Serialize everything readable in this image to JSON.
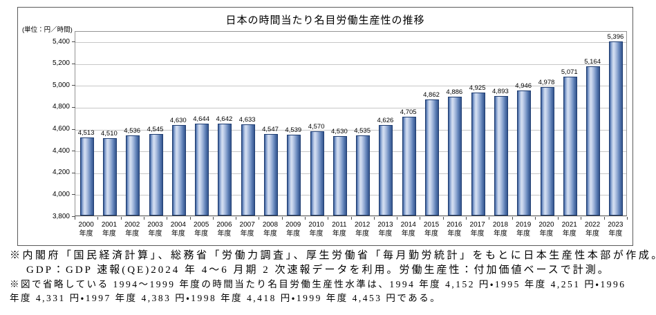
{
  "chart_data": {
    "type": "bar",
    "title": "日本の時間当たり名目労働生産性の推移",
    "ylabel": "(単位：円／時間)",
    "categories": [
      "2000",
      "2001",
      "2002",
      "2003",
      "2004",
      "2005",
      "2006",
      "2007",
      "2008",
      "2009",
      "2010",
      "2011",
      "2012",
      "2013",
      "2014",
      "2015",
      "2016",
      "2017",
      "2018",
      "2019",
      "2020",
      "2021",
      "2022",
      "2023"
    ],
    "category_suffix": "年度",
    "values": [
      4513,
      4510,
      4536,
      4545,
      4630,
      4644,
      4642,
      4633,
      4547,
      4539,
      4570,
      4530,
      4535,
      4626,
      4705,
      4862,
      4886,
      4925,
      4893,
      4946,
      4978,
      5071,
      5164,
      5396
    ],
    "ylim": [
      3800,
      5495
    ],
    "ytick_min": 3800,
    "ytick_max": 5400,
    "ytick_step": 200,
    "grid": true,
    "legend": false,
    "data_labels": true
  },
  "footer": {
    "line1": "※内閣府「国民経済計算」、総務省「労働力調査」、厚生労働省「毎月勤労統計」をもとに日本生産性本部が作成。",
    "line2": "GDP：GDP 速報(QE)2024 年 4～6 月期 2 次速報データを利用。労働生産性：付加価値ベースで計測。",
    "line3": "※図で省略している 1994～1999 年度の時間当たり名目労働生産性水準は、1994 年度 4,152 円・1995 年度 4,251 円・1996",
    "line4": "年度 4,331 円・1997 年度 4,383 円・1998 年度 4,418 円・1999 年度 4,453 円である。"
  },
  "colors": {
    "bar_border": "#1e3c70",
    "bar_dark": "#2d4e8b",
    "bar_highlight": "#d6e0f1",
    "gridline": "#c6c6c6",
    "plot_border": "#949494",
    "axis_line": "#4a4a4a",
    "frame_border": "#595959",
    "text": "#000000"
  }
}
